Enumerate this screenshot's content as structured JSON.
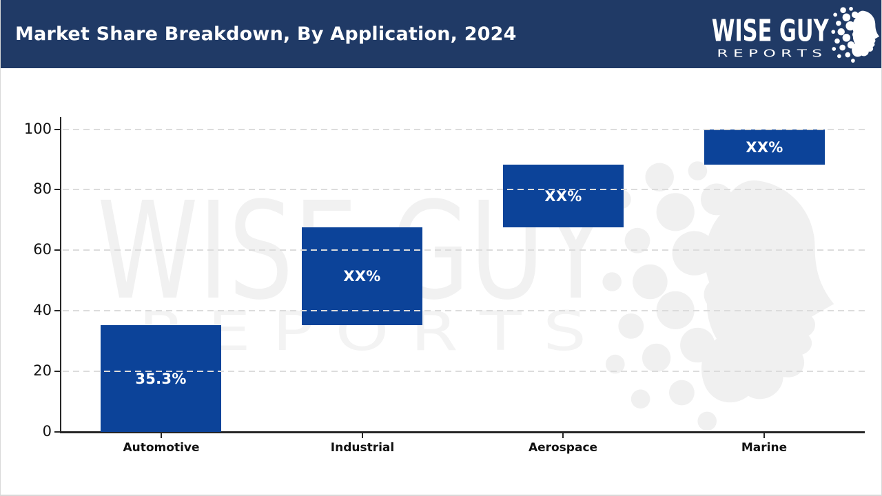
{
  "header": {
    "title": "Market Share Breakdown, By Application, 2024",
    "logo": {
      "line1": "WISE GUY",
      "line2": "R E P O R T S"
    }
  },
  "watermark": {
    "line1": "WISE GUY",
    "line2": "R E P O R T S"
  },
  "chart_data": {
    "type": "bar",
    "subtype": "waterfall",
    "title": "Market Share Breakdown, By Application, 2024",
    "categories": [
      "Automotive",
      "Industrial",
      "Aerospace",
      "Marine"
    ],
    "segments": [
      {
        "category": "Automotive",
        "base": 0,
        "value": 35.3,
        "label": "35.3%"
      },
      {
        "category": "Industrial",
        "base": 35.3,
        "value": 32.4,
        "label": "XX%"
      },
      {
        "category": "Aerospace",
        "base": 67.7,
        "value": 20.7,
        "label": "XX%"
      },
      {
        "category": "Marine",
        "base": 88.4,
        "value": 11.6,
        "label": "XX%"
      }
    ],
    "yticks": [
      0,
      20,
      40,
      60,
      80,
      100
    ],
    "ylim": [
      0,
      104
    ],
    "xlabel": "",
    "ylabel": "",
    "grid": "horizontal-dashed",
    "legend": "none",
    "colors": {
      "bar": "#0c4399",
      "bar_label": "#ffffff",
      "axis": "#262626",
      "grid": "#dcdcdc",
      "header_bg": "#203a66",
      "watermark": "#f1f1f1"
    }
  }
}
